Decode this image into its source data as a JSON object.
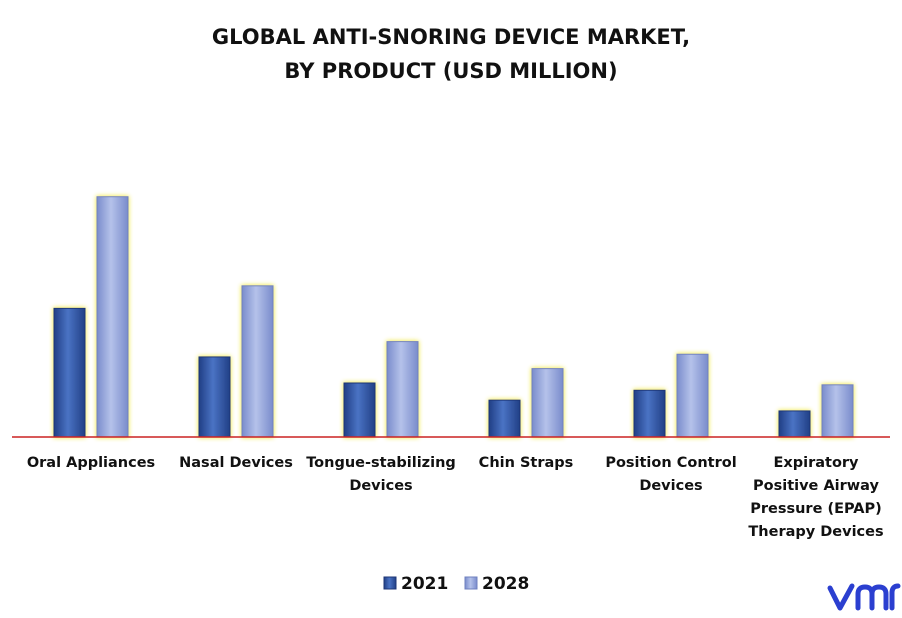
{
  "chart_data": {
    "type": "bar",
    "title": [
      "GLOBAL ANTI-SNORING DEVICE MARKET,",
      "BY PRODUCT (USD MILLION)"
    ],
    "categories": [
      [
        "Oral Appliances"
      ],
      [
        "Nasal Devices"
      ],
      [
        "Tongue-stabilizing",
        "Devices"
      ],
      [
        "Chin Straps"
      ],
      [
        "Position Control",
        "Devices"
      ],
      [
        "Expiratory",
        "Positive Airway",
        "Pressure (EPAP)",
        "Therapy Devices"
      ]
    ],
    "series": [
      {
        "name": "2021",
        "values": [
          143,
          89,
          60,
          41,
          52,
          29
        ],
        "color": "#3a62b0"
      },
      {
        "name": "2028",
        "values": [
          267,
          168,
          106,
          76,
          92,
          58
        ],
        "color": "#97a7d9"
      }
    ],
    "ylim": [
      0,
      300
    ],
    "xlabel": "",
    "ylabel": "",
    "grid": false,
    "legend": "bottom-center",
    "axis_color": "#cc2222",
    "glow_color": "#f5ef7a"
  },
  "logo": {
    "text": "vmr",
    "color": "#2b3fd0"
  }
}
